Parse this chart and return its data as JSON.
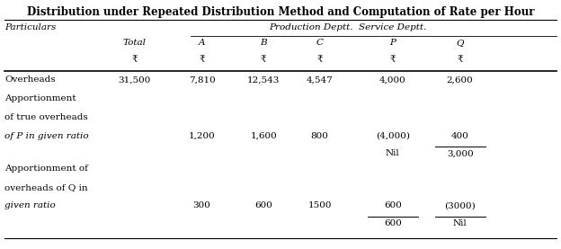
{
  "title": "Distribution under Repeated Distribution Method and Computation of Rate per Hour",
  "background_color": "#ffffff",
  "text_color": "#000000",
  "font_size": 7.5,
  "title_font_size": 8.5,
  "rupee": "₹",
  "col_x": {
    "particulars": 0.008,
    "total": 0.24,
    "A": 0.36,
    "B": 0.47,
    "C": 0.57,
    "P": 0.7,
    "Q": 0.82
  },
  "prod_deptt_label": "Production Deptt.",
  "serv_deptt_label": "Service Deptt.",
  "particulars_label": "Particulars",
  "total_label": "Total",
  "col_labels": [
    "A",
    "B",
    "C",
    "P",
    "Q"
  ]
}
